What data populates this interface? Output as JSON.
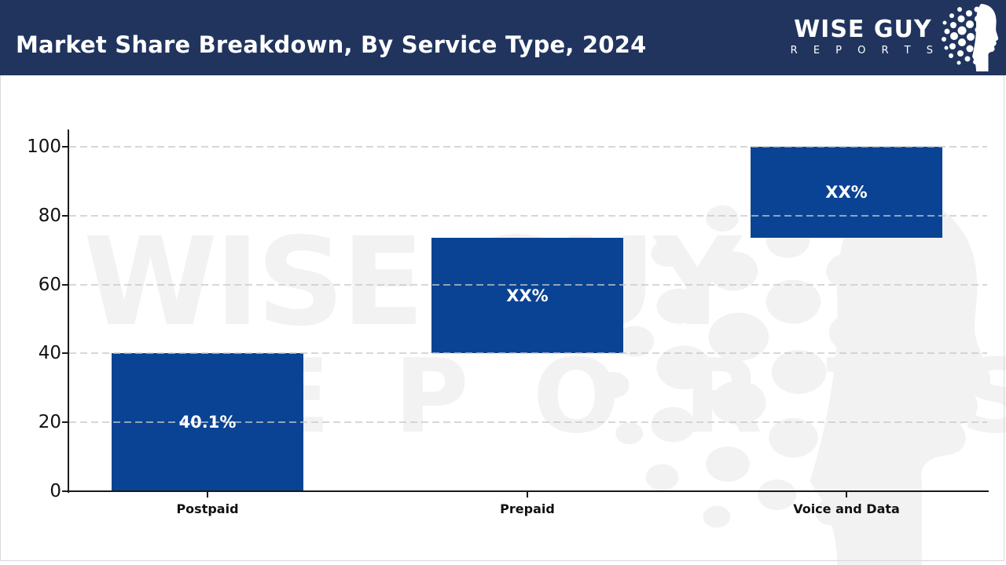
{
  "header": {
    "title": "Market Share Breakdown, By Service Type, 2024",
    "background": "#20345E",
    "logo": {
      "wordmark": "WISE GUY",
      "subtext": "R E P O R T S"
    }
  },
  "watermark": {
    "wordmark": "WISE GUY",
    "subtext": "R E P O R T S"
  },
  "chart_data": {
    "type": "bar",
    "subtype": "waterfall",
    "title": "Market Share Breakdown, By Service Type, 2024",
    "categories": [
      "Postpaid",
      "Prepaid",
      "Voice and Data"
    ],
    "segments": [
      {
        "category": "Postpaid",
        "start": 0,
        "end": 40.1,
        "label": "40.1%"
      },
      {
        "category": "Prepaid",
        "start": 40.1,
        "end": 73.5,
        "label": "XX%"
      },
      {
        "category": "Voice and Data",
        "start": 73.5,
        "end": 100,
        "label": "XX%"
      }
    ],
    "ylim": [
      0,
      105
    ],
    "yticks": [
      0,
      20,
      40,
      60,
      80,
      100
    ],
    "xlabel": "",
    "ylabel": "",
    "grid": "horizontal-dashed",
    "grid_above_bars": true,
    "legend": "none",
    "colors": {
      "bar": "#0A4394",
      "bar_label": "#FFFFFF",
      "header_bg": "#20345E",
      "grid_line": "#DCDCDC",
      "axis": "#1A1A1A",
      "watermark": "#F2F2F2"
    }
  }
}
